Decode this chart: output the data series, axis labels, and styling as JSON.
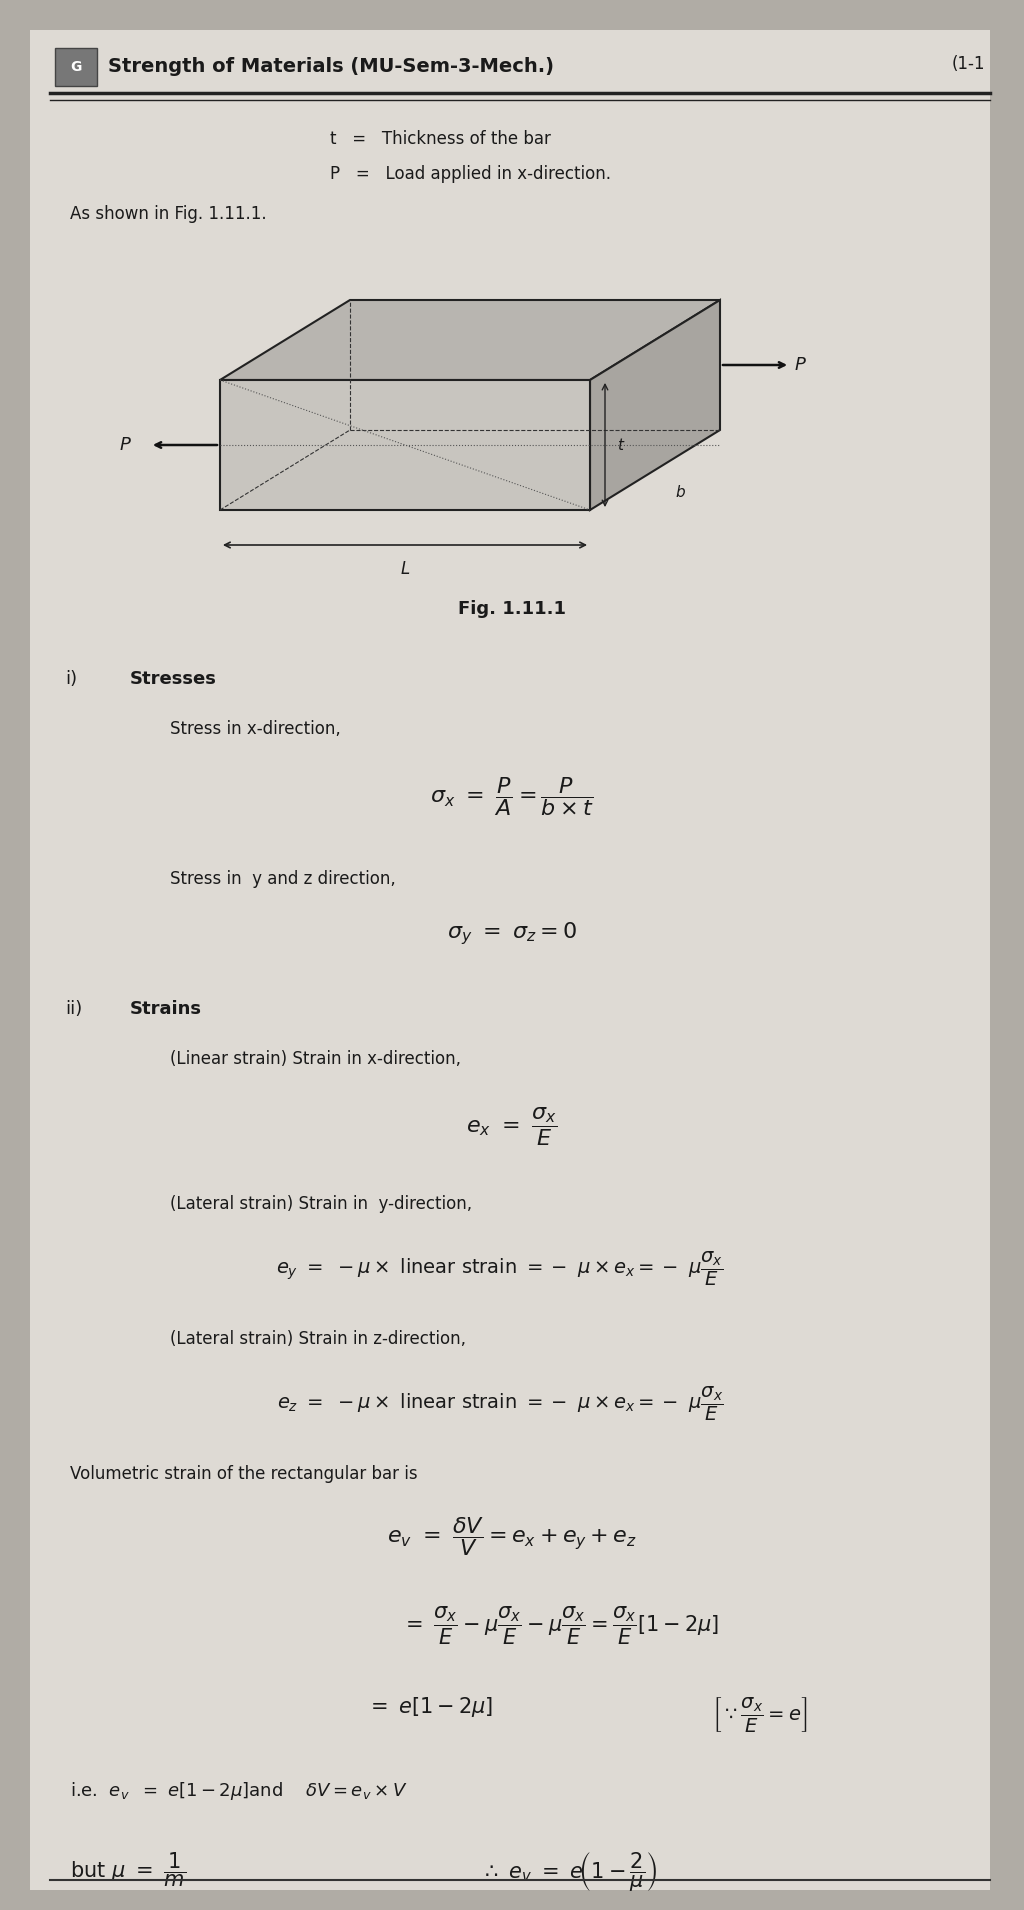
{
  "bg_color": "#b8b8b8",
  "page_bg": "#d8d5cf",
  "text_color": "#1a1a1a",
  "header_text": "Strength of Materials (MU-Sem-3-Mech.)",
  "page_num": "(1-1",
  "line1": "t   =   Thickness of the bar",
  "line2": "P   =   Load applied in x-direction.",
  "as_shown": "As shown in Fig. 1.11.1.",
  "fig_caption": "Fig. 1.11.1",
  "sec_i": "i)",
  "stresses": "Stresses",
  "stress_x_dir": "Stress in x-direction,",
  "stress_yz_dir": "Stress in  y and z direction,",
  "sec_ii": "ii)",
  "strains": "Strains",
  "linear_strain_label": "(Linear strain) Strain in x-direction,",
  "lateral_y_label": "(Lateral strain) Strain in  y-direction,",
  "lateral_z_label": "(Lateral strain) Strain in z-direction,",
  "vol_strain_label": "Volumetric strain of the rectangular bar is",
  "font_size_header": 14,
  "font_size_body": 12,
  "font_size_math": 13
}
